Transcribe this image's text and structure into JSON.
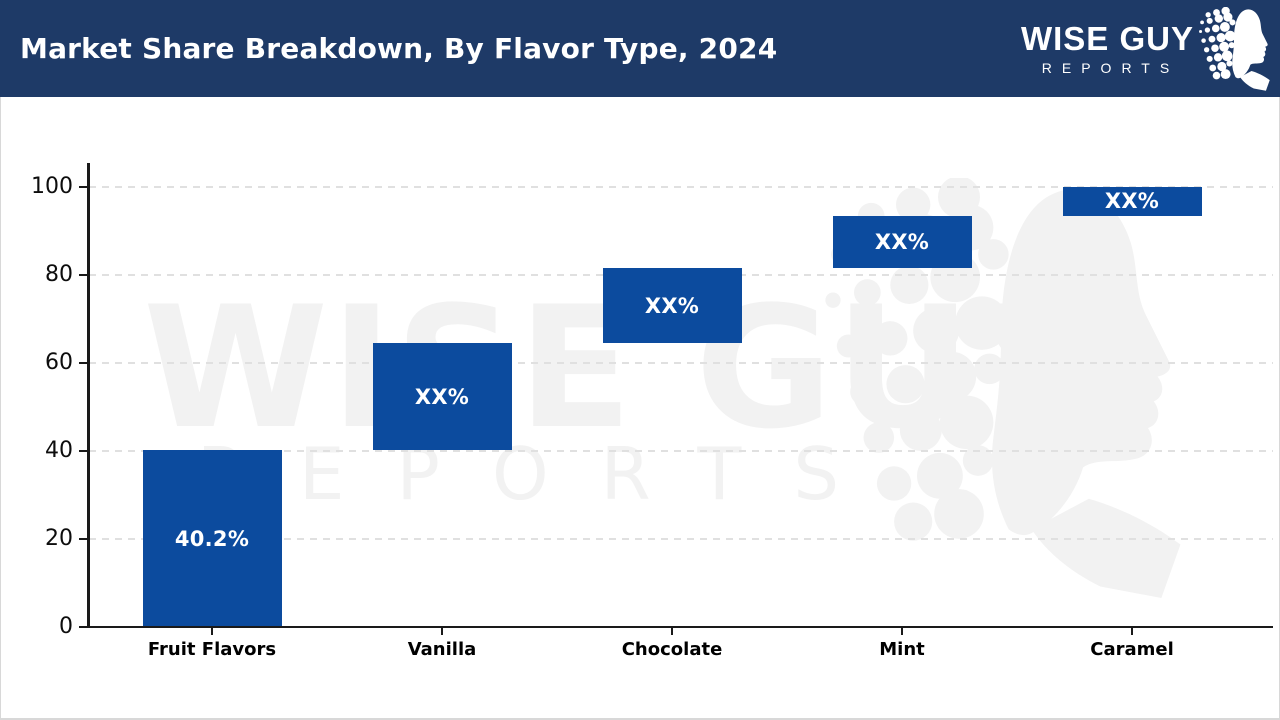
{
  "header": {
    "title": "Market Share Breakdown, By Flavor Type, 2024",
    "logo": {
      "name": "WISE GUY",
      "tagline": "REPORTS"
    }
  },
  "watermark": {
    "line1": "WISE GUY",
    "line2": "REPORTS"
  },
  "colors": {
    "header_bg": "#1e3a67",
    "bar": "#0c4b9e",
    "bar_label": "#ffffff",
    "grid": "#e0e0e0",
    "axis": "#1a1a1a",
    "watermark": "#f2f2f2",
    "border": "#d8d8d8"
  },
  "chart_data": {
    "type": "bar",
    "subtype": "waterfall",
    "title": "Market Share Breakdown, By Flavor Type, 2024",
    "categories": [
      "Fruit Flavors",
      "Vanilla",
      "Chocolate",
      "Mint",
      "Caramel"
    ],
    "segments": [
      {
        "category": "Fruit Flavors",
        "start": 0,
        "end": 40.2,
        "label": "40.2%"
      },
      {
        "category": "Vanilla",
        "start": 40.2,
        "end": 64.5,
        "label": "XX%"
      },
      {
        "category": "Chocolate",
        "start": 64.5,
        "end": 81.5,
        "label": "XX%"
      },
      {
        "category": "Mint",
        "start": 81.5,
        "end": 93.5,
        "label": "XX%"
      },
      {
        "category": "Caramel",
        "start": 93.5,
        "end": 100,
        "label": "XX%"
      }
    ],
    "xlabel": "",
    "ylabel": "",
    "ylim": [
      0,
      100
    ],
    "yticks": [
      0,
      20,
      40,
      60,
      80,
      100
    ],
    "grid": "horizontal-dashed",
    "legend": "none"
  }
}
